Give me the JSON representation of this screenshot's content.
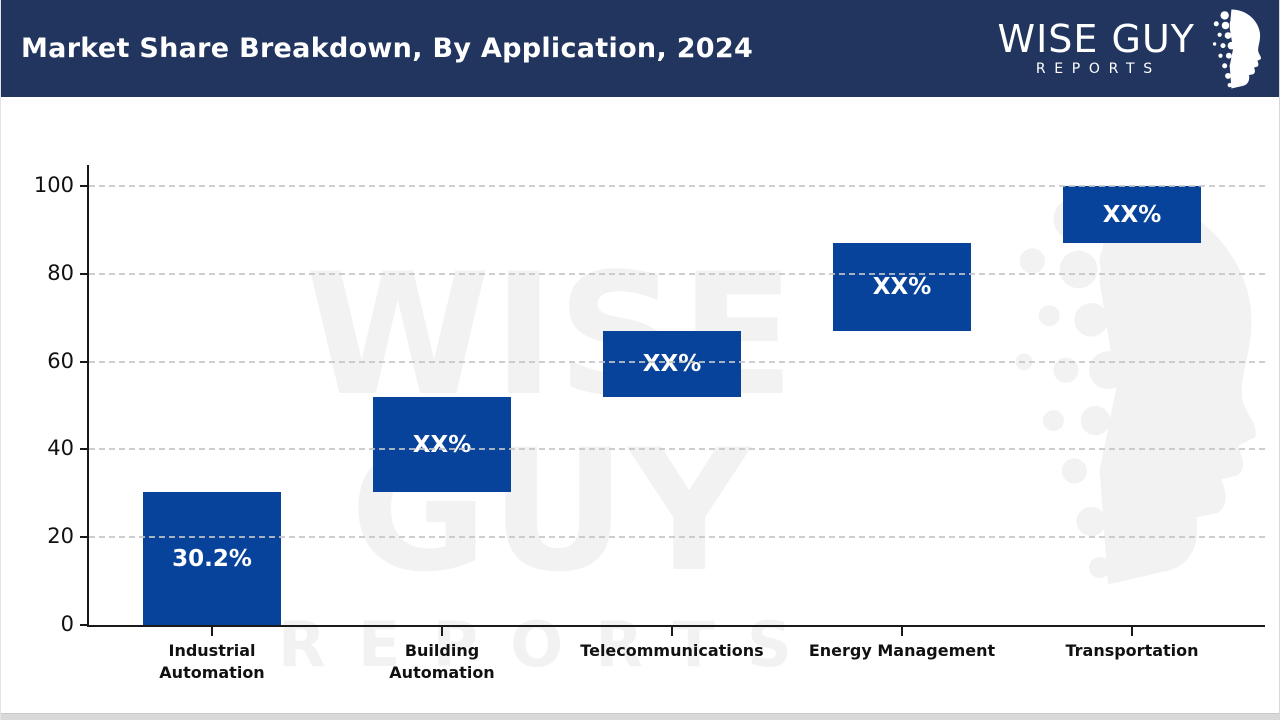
{
  "header": {
    "title": "Market Share Breakdown, By Application, 2024",
    "bg_color": "#22355F",
    "logo": {
      "line1": "WISE GUY",
      "line2": "REPORTS"
    }
  },
  "watermark": {
    "line1": "WISE GUY",
    "line2": "REPORTS"
  },
  "chart_data": {
    "type": "bar",
    "subtype": "waterfall-floating-bars",
    "title": "Market Share Breakdown, By Application, 2024",
    "categories": [
      "Industrial Automation",
      "Building Automation",
      "Telecommunications",
      "Energy Management",
      "Transportation"
    ],
    "segments": [
      {
        "category_lines": [
          "Industrial",
          "Automation"
        ],
        "start": 0,
        "end": 30.2,
        "label": "30.2%"
      },
      {
        "category_lines": [
          "Building",
          "Automation"
        ],
        "start": 30.2,
        "end": 52,
        "label": "XX%"
      },
      {
        "category_lines": [
          "Telecommunications"
        ],
        "start": 52,
        "end": 67,
        "label": "XX%"
      },
      {
        "category_lines": [
          "Energy Management"
        ],
        "start": 67,
        "end": 87,
        "label": "XX%"
      },
      {
        "category_lines": [
          "Transportation"
        ],
        "start": 87,
        "end": 100,
        "label": "XX%"
      }
    ],
    "xlabel": "",
    "ylabel": "",
    "ylim": [
      0,
      100
    ],
    "yticks": [
      0,
      20,
      40,
      60,
      80,
      100
    ],
    "grid": "dashed-horizontal",
    "legend": "none",
    "bar_color": "#08439B",
    "value_label_color": "#ffffff"
  }
}
